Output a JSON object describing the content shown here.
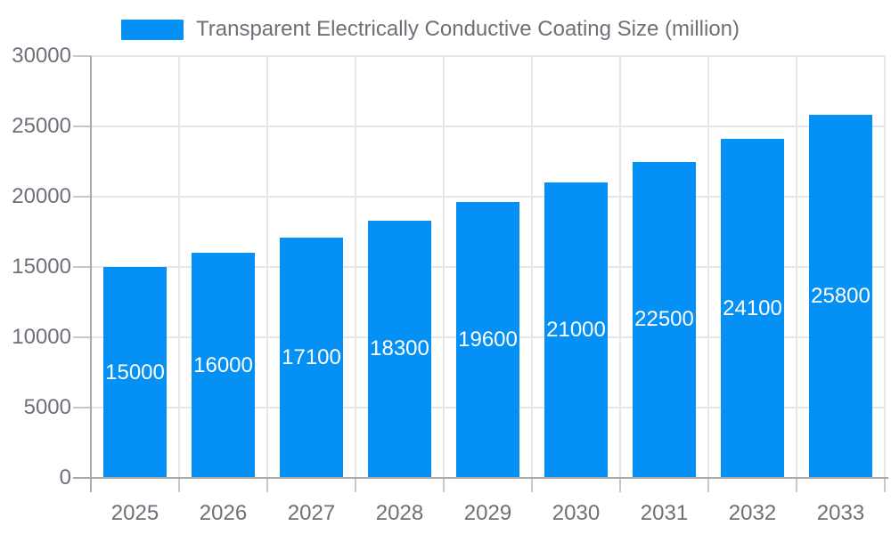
{
  "chart_data": {
    "type": "bar",
    "title": "Transparent Electrically Conductive Coating Size (million)",
    "legend": {
      "entries": [
        "Transparent Electrically Conductive Coating Size (million)"
      ],
      "position": "top"
    },
    "categories": [
      "2025",
      "2026",
      "2027",
      "2028",
      "2029",
      "2030",
      "2031",
      "2032",
      "2033"
    ],
    "values": [
      15000,
      16000,
      17100,
      18300,
      19600,
      21000,
      22500,
      24100,
      25800
    ],
    "value_labels": [
      "15000",
      "16000",
      "17100",
      "18300",
      "19600",
      "21000",
      "22500",
      "24100",
      "25800"
    ],
    "xlabel": "",
    "ylabel": "",
    "ylim": [
      0,
      30000
    ],
    "ytick_step": 5000,
    "ytick_labels": [
      "0",
      "5000",
      "10000",
      "15000",
      "20000",
      "25000",
      "30000"
    ],
    "grid": "horizontal and vertical light gray gridlines",
    "value_label_position": "centered inside bar, white text",
    "colors": {
      "bar": "#0490F5",
      "value_label": "#FFFFFF",
      "axis_label": "#6E7079",
      "legend_text": "#6E7079",
      "gridline": "#E6E6E6",
      "axis_line": "#AAAAAA",
      "tick": "#C8C8C8",
      "background": "#FFFFFF"
    }
  }
}
